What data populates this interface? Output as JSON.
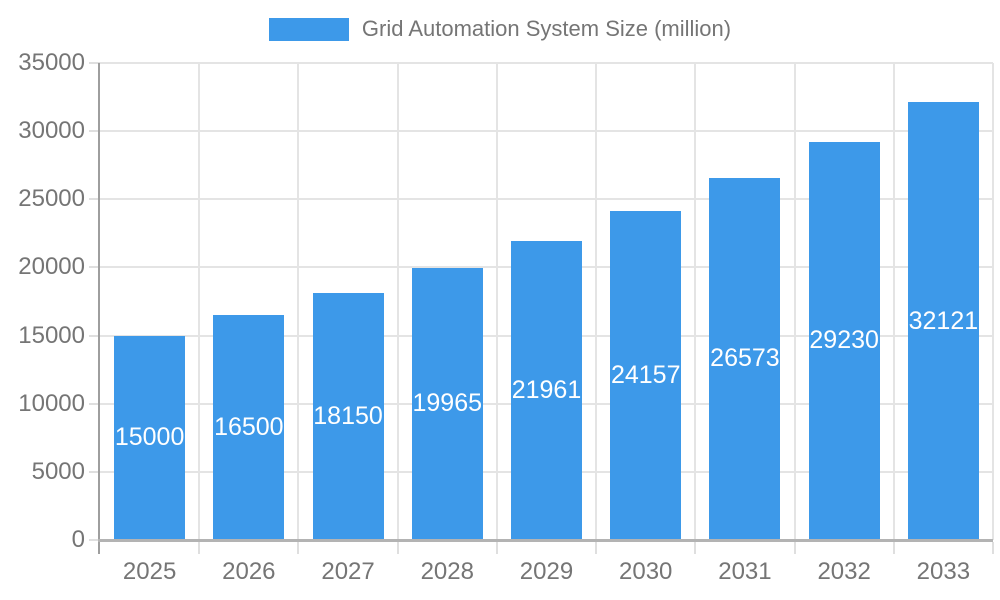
{
  "chart_data": {
    "type": "bar",
    "legend_label": "Grid Automation System Size (million)",
    "series_name": "Grid Automation System Size (million)",
    "categories": [
      "2025",
      "2026",
      "2027",
      "2028",
      "2029",
      "2030",
      "2031",
      "2032",
      "2033"
    ],
    "values": [
      15000,
      16500,
      18150,
      19965,
      21961,
      24157,
      26573,
      29230,
      32121
    ],
    "yticks": [
      0,
      5000,
      10000,
      15000,
      20000,
      25000,
      30000,
      35000
    ],
    "ylim": [
      0,
      35000
    ],
    "xlabel": "",
    "ylabel": "",
    "grid": true,
    "legend_position": "top-center",
    "value_label_position": "inside-center",
    "colors": {
      "bar": "#3D99E9",
      "axis_text": "#757575",
      "bar_value_text": "#FFFFFF",
      "gridline": "#E4E4E4",
      "axis_line": "#9E9E9E",
      "baseline": "#B3B3B3",
      "tick": "#DFDFDF",
      "background": "#FFFFFF"
    }
  }
}
